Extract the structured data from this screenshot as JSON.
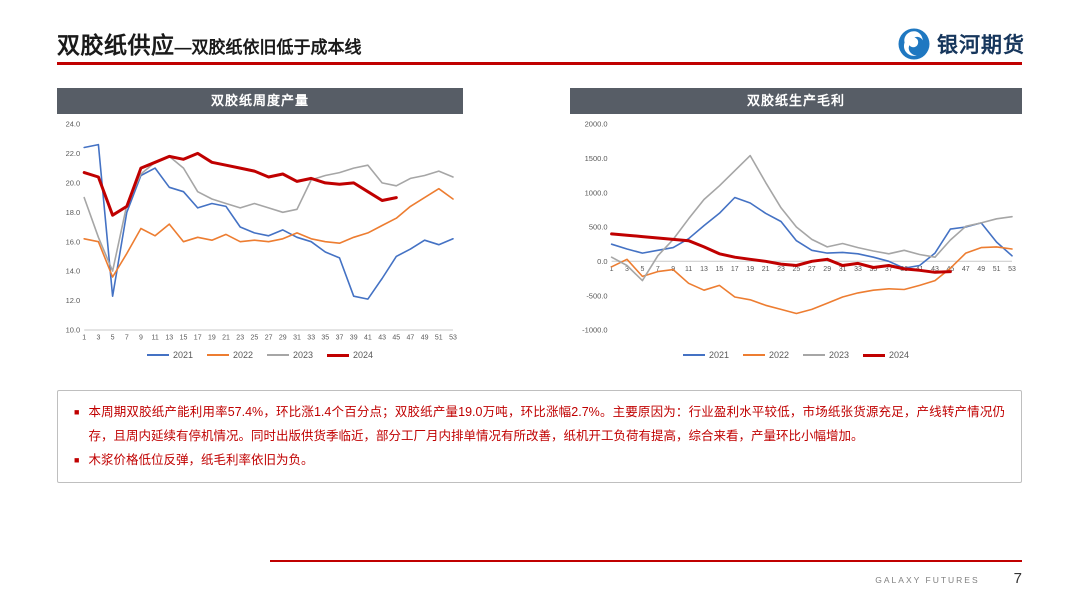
{
  "slide": {
    "title_main": "双胶纸供应",
    "title_sub": "—双胶纸依旧低于成本线",
    "logo_text": "银河期货",
    "footer_brand": "GALAXY FUTURES",
    "page_number": "7"
  },
  "bullets": [
    {
      "text": "本周期双胶纸产能利用率57.4%，环比涨1.4个百分点；双胶纸产量19.0万吨，环比涨幅2.7%。主要原因为：行业盈利水平较低，市场纸张货源充足，产线转产情况仍存，且周内延续有停机情况。同时出版供货季临近，部分工厂月内排单情况有所改善，纸机开工负荷有提高，综合来看，产量环比小幅增加。"
    },
    {
      "text": "木浆价格低位反弹，纸毛利率依旧为负。"
    }
  ],
  "colors": {
    "accent_red": "#C00000",
    "panel_header": "#575D66",
    "logo_blue": "#1F78C1"
  },
  "chart_data": [
    {
      "type": "line",
      "title": "双胶纸周度产量",
      "xlabel": "",
      "ylabel": "",
      "x": [
        1,
        3,
        5,
        7,
        9,
        11,
        13,
        15,
        17,
        19,
        21,
        23,
        25,
        27,
        29,
        31,
        33,
        35,
        37,
        39,
        41,
        43,
        45,
        47,
        49,
        51,
        53
      ],
      "ylim": [
        10,
        24
      ],
      "yticks": [
        10,
        12,
        14,
        16,
        18,
        20,
        22,
        24
      ],
      "xlabels_at": 10,
      "grid": false,
      "legend_position": "bottom",
      "series": [
        {
          "name": "2021",
          "color": "#4472C4",
          "width": 1.6,
          "values": [
            22.4,
            22.6,
            12.3,
            18.0,
            20.5,
            21.0,
            19.7,
            19.4,
            18.3,
            18.6,
            18.4,
            17.0,
            16.6,
            16.4,
            16.8,
            16.3,
            16.0,
            15.3,
            14.9,
            12.3,
            12.1,
            13.5,
            15.0,
            15.5,
            16.1,
            15.8,
            16.2
          ]
        },
        {
          "name": "2022",
          "color": "#ED7D31",
          "width": 1.6,
          "values": [
            16.2,
            16.0,
            13.6,
            15.2,
            16.9,
            16.4,
            17.2,
            16.0,
            16.3,
            16.1,
            16.5,
            16.0,
            16.1,
            16.0,
            16.2,
            16.6,
            16.2,
            16.0,
            15.9,
            16.3,
            16.6,
            17.1,
            17.6,
            18.4,
            19.0,
            19.6,
            18.9
          ]
        },
        {
          "name": "2023",
          "color": "#A6A6A6",
          "width": 1.6,
          "values": [
            19.0,
            16.3,
            14.0,
            18.5,
            20.6,
            21.4,
            21.8,
            21.0,
            19.4,
            18.9,
            18.6,
            18.3,
            18.6,
            18.3,
            18.0,
            18.2,
            20.2,
            20.5,
            20.7,
            21.0,
            21.2,
            20.0,
            19.8,
            20.3,
            20.5,
            20.8,
            20.4
          ]
        },
        {
          "name": "2024",
          "color": "#C00000",
          "width": 3,
          "values": [
            20.7,
            20.4,
            17.8,
            18.4,
            21.0,
            21.4,
            21.8,
            21.6,
            22.0,
            21.4,
            21.2,
            21.0,
            20.8,
            20.4,
            20.6,
            20.1,
            20.3,
            20.0,
            19.9,
            20.0,
            19.4,
            18.8,
            19.0,
            null,
            null,
            null,
            null
          ]
        }
      ]
    },
    {
      "type": "line",
      "title": "双胶纸生产毛利",
      "xlabel": "",
      "ylabel": "",
      "x": [
        1,
        3,
        5,
        7,
        9,
        11,
        13,
        15,
        17,
        19,
        21,
        23,
        25,
        27,
        29,
        31,
        33,
        35,
        37,
        39,
        41,
        43,
        45,
        47,
        49,
        51,
        53
      ],
      "ylim": [
        -1000,
        2000
      ],
      "yticks": [
        -1000,
        -500,
        0,
        500,
        1000,
        1500,
        2000
      ],
      "xlabels_at": 0,
      "grid": false,
      "legend_position": "bottom",
      "series": [
        {
          "name": "2021",
          "color": "#4472C4",
          "width": 1.6,
          "values": [
            250,
            180,
            120,
            160,
            200,
            330,
            520,
            700,
            930,
            850,
            700,
            580,
            300,
            160,
            120,
            130,
            110,
            60,
            0,
            -100,
            -60,
            120,
            470,
            500,
            560,
            280,
            80
          ]
        },
        {
          "name": "2022",
          "color": "#ED7D31",
          "width": 1.6,
          "values": [
            -80,
            30,
            -220,
            -150,
            -120,
            -320,
            -420,
            -350,
            -520,
            -560,
            -640,
            -700,
            -760,
            -700,
            -610,
            -520,
            -460,
            -420,
            -400,
            -410,
            -350,
            -280,
            -100,
            120,
            200,
            210,
            180
          ]
        },
        {
          "name": "2023",
          "color": "#A6A6A6",
          "width": 1.6,
          "values": [
            60,
            -60,
            -280,
            80,
            320,
            620,
            900,
            1100,
            1320,
            1540,
            1150,
            780,
            500,
            320,
            210,
            260,
            200,
            150,
            110,
            160,
            100,
            60,
            310,
            510,
            560,
            620,
            650
          ]
        },
        {
          "name": "2024",
          "color": "#C00000",
          "width": 3,
          "values": [
            400,
            380,
            360,
            340,
            320,
            300,
            210,
            110,
            60,
            30,
            0,
            -40,
            -60,
            0,
            30,
            -60,
            -30,
            -90,
            -60,
            -110,
            -130,
            -160,
            -150,
            null,
            null,
            null,
            null
          ]
        }
      ]
    }
  ]
}
